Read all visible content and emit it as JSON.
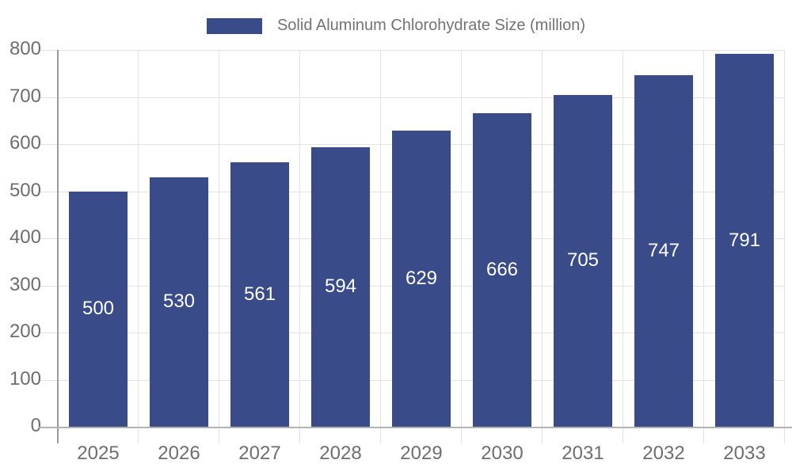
{
  "legend": {
    "label": "Solid Aluminum Chlorohydrate Size (million)"
  },
  "colors": {
    "bar": "#3a4b8a",
    "grid_line": "#e3e3e3",
    "x_axis_line": "#b3b3b3",
    "y_axis_line": "#9a9a9a",
    "tick": "#e0e0e0",
    "tick_label": "#6e6e6e",
    "legend_text": "#737373",
    "value_label": "#ffffff",
    "background": "#ffffff"
  },
  "chart_data": {
    "type": "bar",
    "title": "Solid Aluminum Chlorohydrate Size (million)",
    "series_name": "Solid Aluminum Chlorohydrate Size (million)",
    "categories": [
      "2025",
      "2026",
      "2027",
      "2028",
      "2029",
      "2030",
      "2031",
      "2032",
      "2033"
    ],
    "values": [
      500,
      530,
      561,
      594,
      629,
      666,
      705,
      747,
      791
    ],
    "xlabel": "",
    "ylabel": "",
    "ylim": [
      0,
      800
    ],
    "yticks": [
      0,
      100,
      200,
      300,
      400,
      500,
      600,
      700,
      800
    ],
    "grid": true,
    "legend_position": "top-center",
    "value_label_position": "inside-center"
  }
}
